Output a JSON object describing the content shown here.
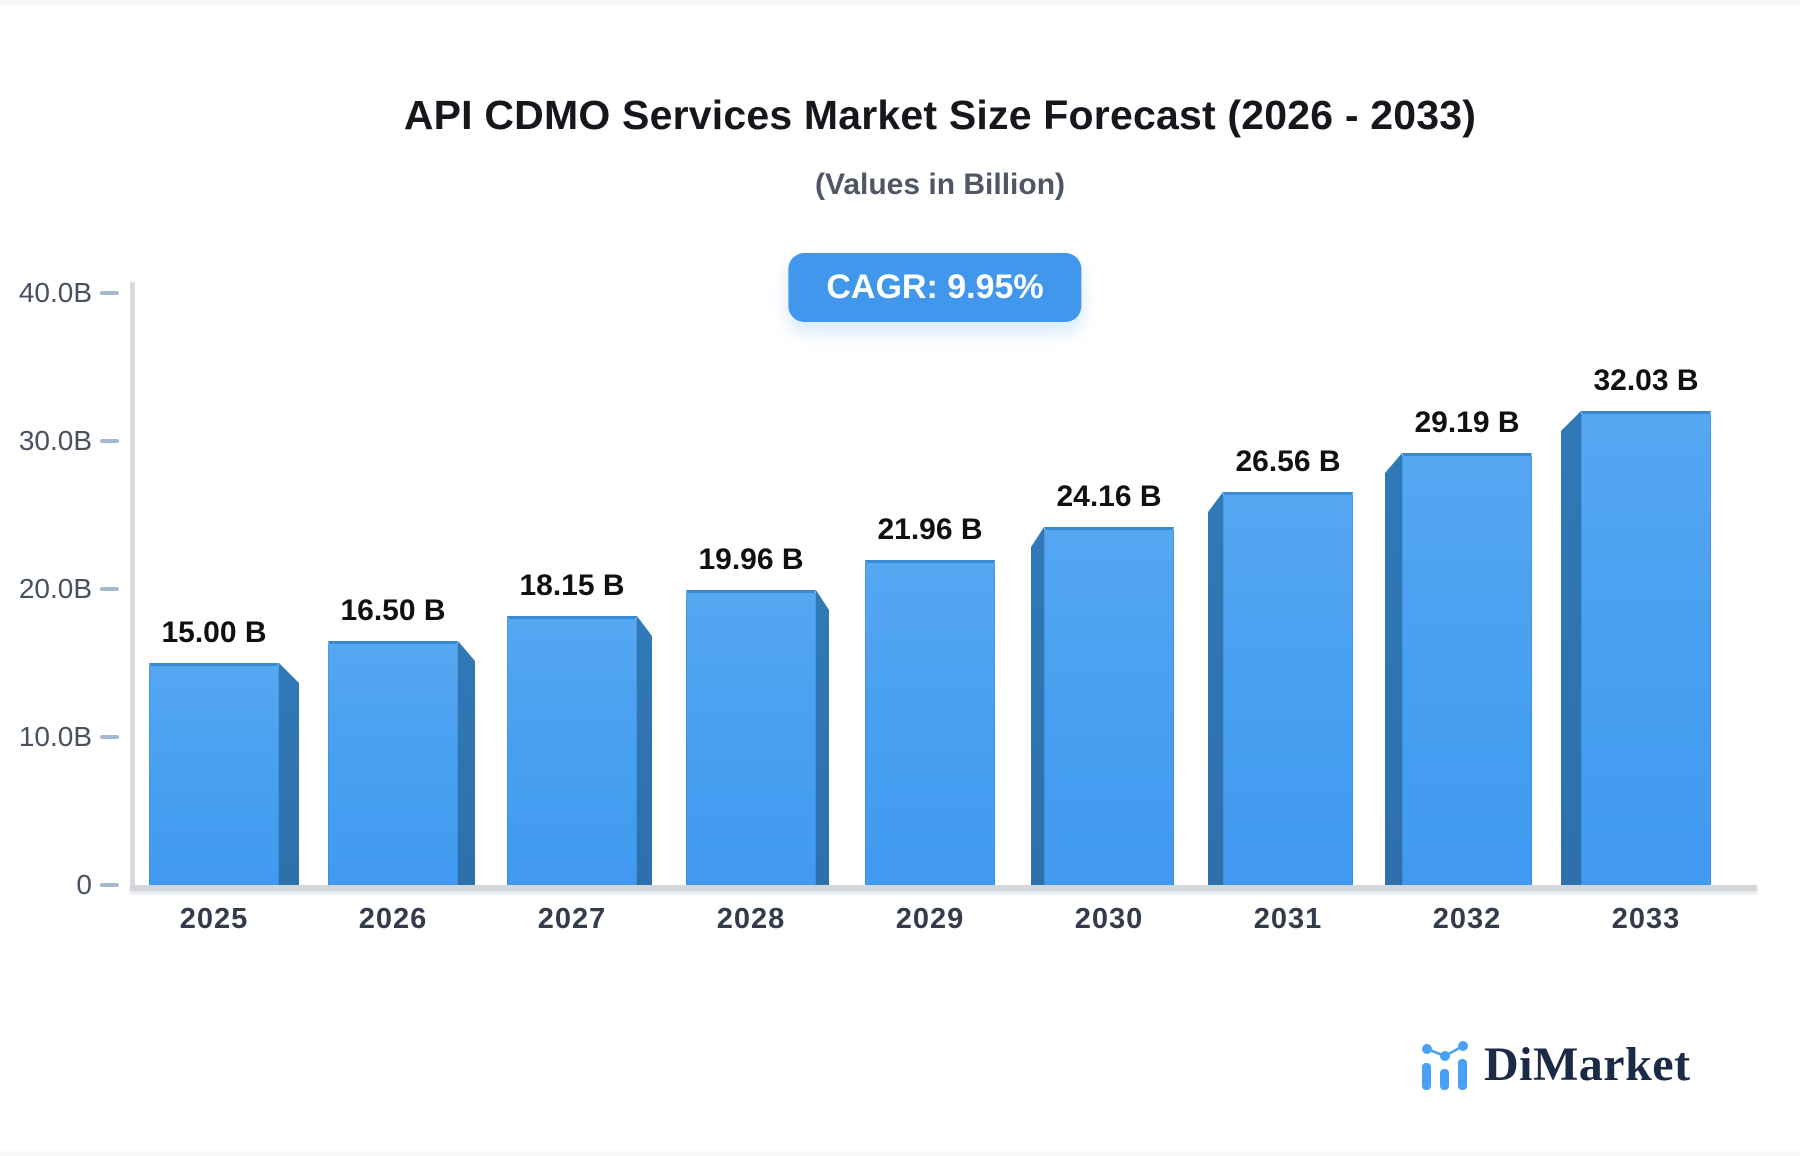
{
  "title": "API CDMO Services Market Size Forecast (2026 - 2033)",
  "subtitle": "(Values in Billion)",
  "badge": {
    "label": "CAGR: 9.95%"
  },
  "brand": {
    "name": "DiMarket"
  },
  "colors": {
    "badge_background": "#4097eb",
    "bar_face": "#4aa0f0",
    "bar_side": "#2e74b1",
    "axis_line": "#d7dade",
    "tick_dash": "#a3b9cf",
    "title_text": "#15171c",
    "subtitle_text": "#4d5766",
    "logo_blue": "#4aa0f5",
    "logo_text": "#1a2a47"
  },
  "chart_data": {
    "type": "bar",
    "title": "API CDMO Services Market Size Forecast (2026 - 2033)",
    "subtitle": "(Values in Billion)",
    "annotation": "CAGR: 9.95%",
    "categories": [
      "2025",
      "2026",
      "2027",
      "2028",
      "2029",
      "2030",
      "2031",
      "2032",
      "2033"
    ],
    "values": [
      15.0,
      16.5,
      18.15,
      19.96,
      21.96,
      24.16,
      26.56,
      29.19,
      32.03
    ],
    "value_labels": [
      "15.00 B",
      "16.50 B",
      "18.15 B",
      "19.96 B",
      "21.96 B",
      "24.16 B",
      "26.56 B",
      "29.19 B",
      "32.03 B"
    ],
    "xlabel": "",
    "ylabel": "",
    "ylim": [
      0,
      40
    ],
    "yticks": [
      {
        "label": "40.0B",
        "value": 40
      },
      {
        "label": "30.0B",
        "value": 30
      },
      {
        "label": "20.0B",
        "value": 20
      },
      {
        "label": "10.0B",
        "value": 10
      },
      {
        "label": "0",
        "value": 0
      }
    ],
    "grid": false,
    "legend_position": "none"
  }
}
